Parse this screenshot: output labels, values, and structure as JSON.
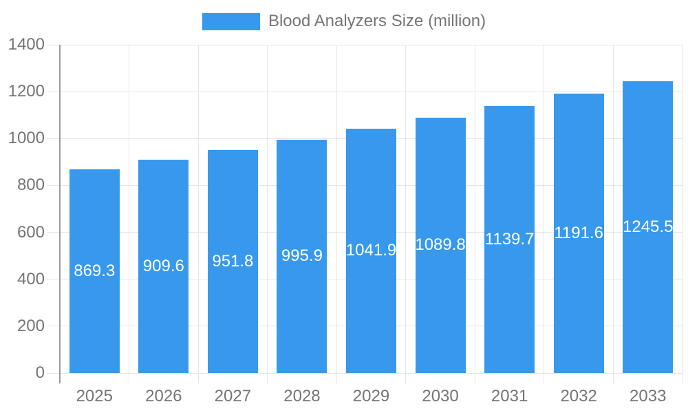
{
  "legend": {
    "label": "Blood Analyzers Size (million)"
  },
  "chart_data": {
    "type": "bar",
    "title": "Blood Analyzers Size (million)",
    "categories": [
      "2025",
      "2026",
      "2027",
      "2028",
      "2029",
      "2030",
      "2031",
      "2032",
      "2033"
    ],
    "series": [
      {
        "name": "Blood Analyzers Size (million)",
        "values": [
          869.3,
          909.6,
          951.8,
          995.9,
          1041.9,
          1089.8,
          1139.7,
          1191.6,
          1245.5
        ]
      }
    ],
    "value_label_format": "one-decimal",
    "value_label_position": "inside-center",
    "xlabel": "",
    "ylabel": "",
    "ylim": [
      0,
      1400
    ],
    "ytick_step": 200,
    "yticks": [
      0,
      200,
      400,
      600,
      800,
      1000,
      1200,
      1400
    ],
    "grid": true,
    "legend_position": "top-center",
    "colors": {
      "bar": "#3899EC",
      "axis_text": "#757575",
      "value_text": "#ffffff",
      "gridline": "#e6e6e6",
      "axis_line": "#999999",
      "background": "#ffffff"
    }
  }
}
